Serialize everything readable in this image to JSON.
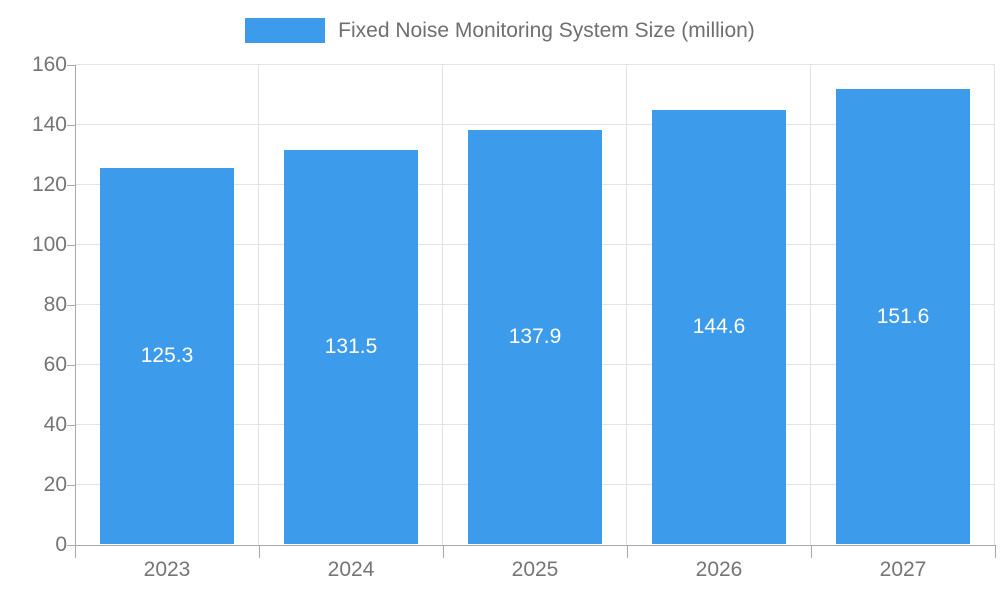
{
  "chart_data": {
    "type": "bar",
    "title": "Fixed Noise Monitoring System Size (million)",
    "categories": [
      "2023",
      "2024",
      "2025",
      "2026",
      "2027"
    ],
    "values": [
      125.3,
      131.5,
      137.9,
      144.6,
      151.6
    ],
    "value_labels": [
      "125.3",
      "131.5",
      "137.9",
      "144.6",
      "151.6"
    ],
    "xlabel": "",
    "ylabel": "",
    "ylim": [
      0,
      160
    ],
    "y_ticks": [
      0,
      20,
      40,
      60,
      80,
      100,
      120,
      140,
      160
    ],
    "grid": "on",
    "legend_position": "top-center",
    "value_label_position": "inside-center",
    "colors": {
      "bar": "#3D9BEB",
      "value_label": "#ffffff",
      "axis_line": "#aaaaaa",
      "gridline": "#e3e3e3",
      "tick_text": "#757575",
      "legend_text": "#6f6f6f",
      "background": "#ffffff"
    }
  }
}
